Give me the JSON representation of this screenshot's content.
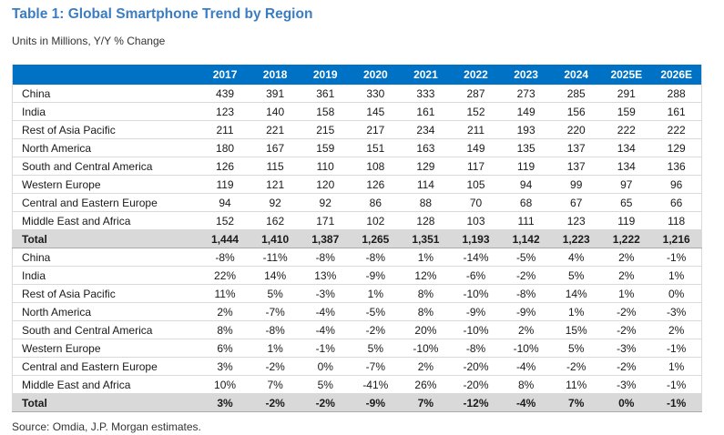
{
  "chart_data": {
    "type": "table",
    "title": "Table 1: Global Smartphone Trend by Region",
    "subtitle": "Units in Millions, Y/Y % Change",
    "source": "Source: Omdia, J.P. Morgan estimates.",
    "columns": [
      "",
      "2017",
      "2018",
      "2019",
      "2020",
      "2021",
      "2022",
      "2023",
      "2024",
      "2025E",
      "2026E"
    ],
    "sections": [
      {
        "name": "units_in_millions",
        "rows": [
          {
            "label": "China",
            "values": [
              "439",
              "391",
              "361",
              "330",
              "333",
              "287",
              "273",
              "285",
              "291",
              "288"
            ]
          },
          {
            "label": "India",
            "values": [
              "123",
              "140",
              "158",
              "145",
              "161",
              "152",
              "149",
              "156",
              "159",
              "161"
            ]
          },
          {
            "label": "Rest of Asia Pacific",
            "values": [
              "211",
              "221",
              "215",
              "217",
              "234",
              "211",
              "193",
              "220",
              "222",
              "222"
            ]
          },
          {
            "label": "North America",
            "values": [
              "180",
              "167",
              "159",
              "151",
              "163",
              "149",
              "135",
              "137",
              "134",
              "129"
            ]
          },
          {
            "label": "South and Central America",
            "values": [
              "126",
              "115",
              "110",
              "108",
              "129",
              "117",
              "119",
              "137",
              "134",
              "136"
            ]
          },
          {
            "label": "Western Europe",
            "values": [
              "119",
              "121",
              "120",
              "126",
              "114",
              "105",
              "94",
              "99",
              "97",
              "96"
            ]
          },
          {
            "label": "Central and Eastern Europe",
            "values": [
              "94",
              "92",
              "92",
              "86",
              "88",
              "70",
              "68",
              "67",
              "65",
              "66"
            ]
          },
          {
            "label": "Middle East and Africa",
            "values": [
              "152",
              "162",
              "171",
              "102",
              "128",
              "103",
              "111",
              "123",
              "119",
              "118"
            ]
          }
        ],
        "total": {
          "label": "Total",
          "values": [
            "1,444",
            "1,410",
            "1,387",
            "1,265",
            "1,351",
            "1,193",
            "1,142",
            "1,223",
            "1,222",
            "1,216"
          ]
        }
      },
      {
        "name": "yoy_pct_change",
        "rows": [
          {
            "label": "China",
            "values": [
              "-8%",
              "-11%",
              "-8%",
              "-8%",
              "1%",
              "-14%",
              "-5%",
              "4%",
              "2%",
              "-1%"
            ]
          },
          {
            "label": "India",
            "values": [
              "22%",
              "14%",
              "13%",
              "-9%",
              "12%",
              "-6%",
              "-2%",
              "5%",
              "2%",
              "1%"
            ]
          },
          {
            "label": "Rest of Asia Pacific",
            "values": [
              "11%",
              "5%",
              "-3%",
              "1%",
              "8%",
              "-10%",
              "-8%",
              "14%",
              "1%",
              "0%"
            ]
          },
          {
            "label": "North America",
            "values": [
              "2%",
              "-7%",
              "-4%",
              "-5%",
              "8%",
              "-9%",
              "-9%",
              "1%",
              "-2%",
              "-3%"
            ]
          },
          {
            "label": "South and Central America",
            "values": [
              "8%",
              "-8%",
              "-4%",
              "-2%",
              "20%",
              "-10%",
              "2%",
              "15%",
              "-2%",
              "2%"
            ]
          },
          {
            "label": "Western Europe",
            "values": [
              "6%",
              "1%",
              "-1%",
              "5%",
              "-10%",
              "-8%",
              "-10%",
              "5%",
              "-3%",
              "-1%"
            ]
          },
          {
            "label": "Central and Eastern Europe",
            "values": [
              "3%",
              "-2%",
              "0%",
              "-7%",
              "2%",
              "-20%",
              "-4%",
              "-2%",
              "-2%",
              "1%"
            ]
          },
          {
            "label": "Middle East and Africa",
            "values": [
              "10%",
              "7%",
              "5%",
              "-41%",
              "26%",
              "-20%",
              "8%",
              "11%",
              "-3%",
              "-1%"
            ]
          }
        ],
        "total": {
          "label": "Total",
          "values": [
            "3%",
            "-2%",
            "-2%",
            "-9%",
            "7%",
            "-12%",
            "-4%",
            "7%",
            "0%",
            "-1%"
          ]
        }
      }
    ],
    "colors": {
      "header_bg": "#0072C6",
      "header_text": "#FFFFFF",
      "title_blue": "#3B7DC2",
      "total_row_bg": "#D9D9D9"
    },
    "layout": {
      "grid": "off",
      "legend": "none"
    }
  }
}
